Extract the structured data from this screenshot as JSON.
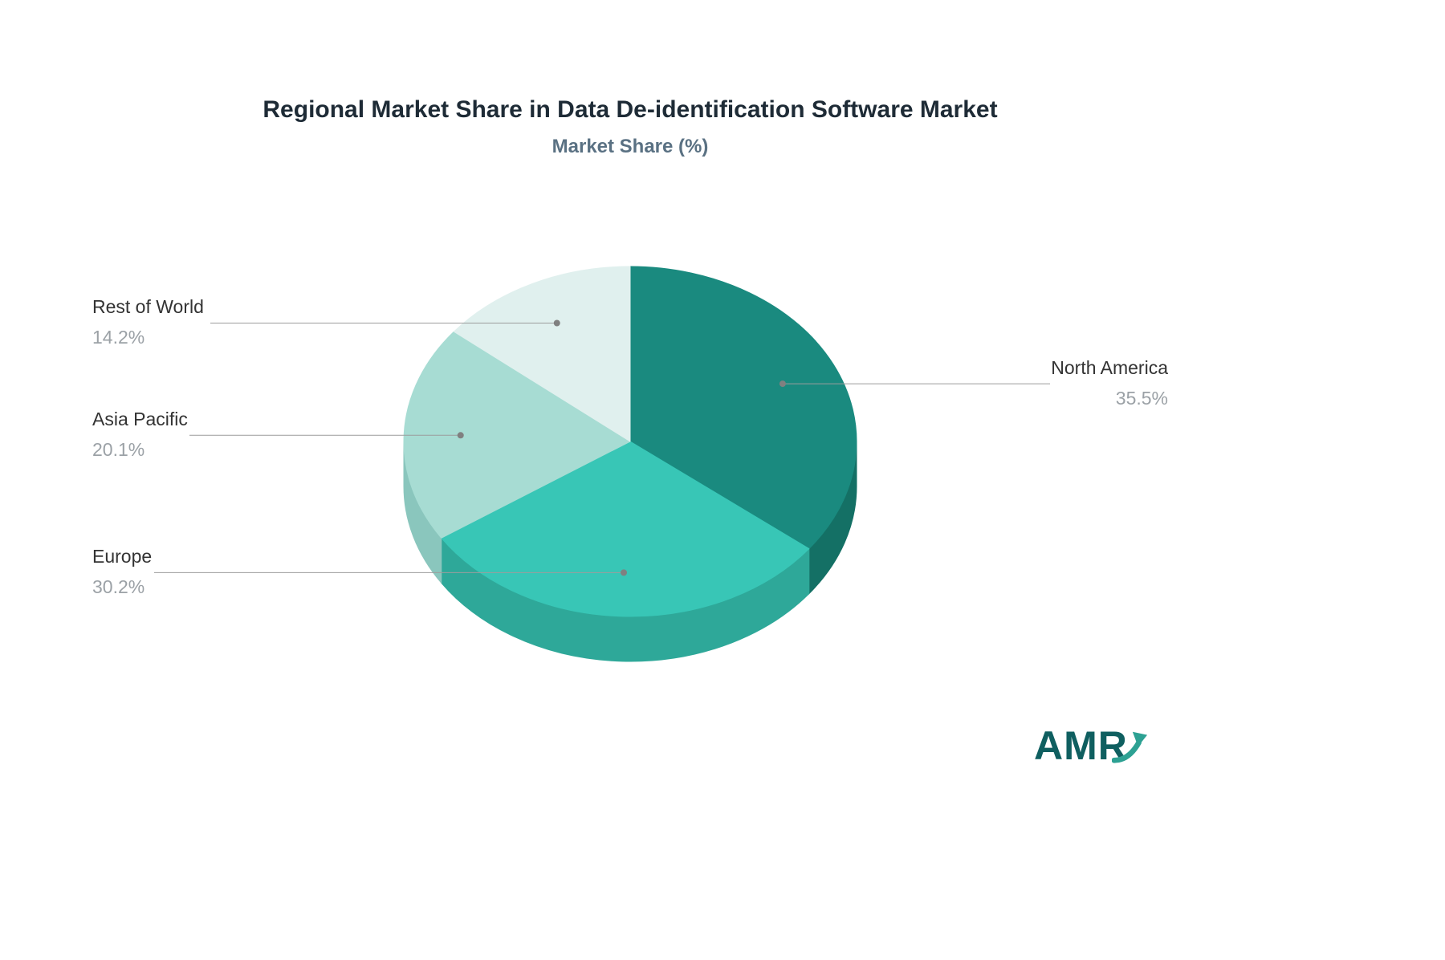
{
  "header": {
    "title": "Regional Market Share in Data De-identification Software Market",
    "subtitle": "Market Share (%)"
  },
  "chart_data": {
    "type": "pie",
    "title": "Regional Market Share in Data De-identification Software Market",
    "subtitle": "Market Share (%)",
    "unit": "%",
    "total": 100,
    "start_angle_deg": 0,
    "direction": "clockwise",
    "style": "3d-pie",
    "legend_position": "none",
    "slices": [
      {
        "label": "North America",
        "value": 35.5,
        "display": "35.5%",
        "color": "#1a8a7f",
        "side_color": "#147065",
        "label_side": "right"
      },
      {
        "label": "Europe",
        "value": 30.2,
        "display": "30.2%",
        "color": "#38c6b6",
        "side_color": "#2ea899",
        "label_side": "left"
      },
      {
        "label": "Asia Pacific",
        "value": 20.1,
        "display": "20.1%",
        "color": "#a7dcd3",
        "side_color": "#8ac6bd",
        "label_side": "left"
      },
      {
        "label": "Rest of World",
        "value": 14.2,
        "display": "14.2%",
        "color": "#e0f0ee",
        "label_side": "left"
      }
    ],
    "connector_color": "#9c9c9c",
    "label_name_color": "#333333",
    "label_value_color": "#9ba1a6"
  },
  "logo": {
    "text": "AMR",
    "color": "#0f5f60",
    "arrow_color": "#2da193",
    "arrow_icon": "trend-up-arrow"
  }
}
